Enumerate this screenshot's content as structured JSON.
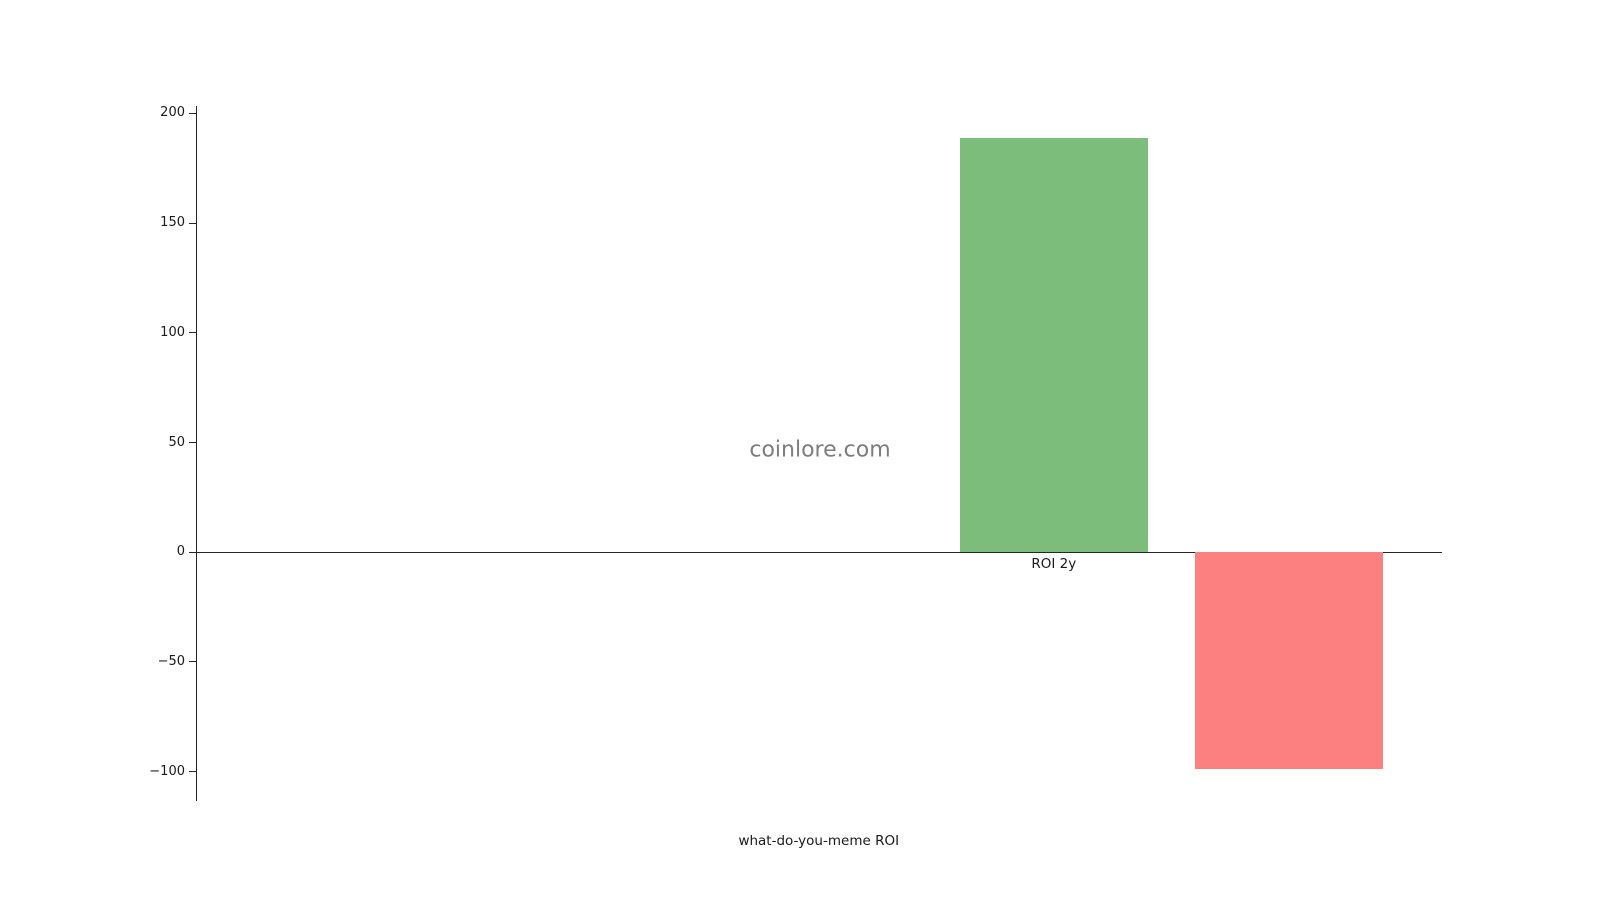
{
  "chart_data": {
    "type": "bar",
    "categories": [
      "ROI 2y",
      ""
    ],
    "values": [
      189,
      -99
    ],
    "bar_colors": [
      "#7dbd7b",
      "#fd8080"
    ],
    "title": "",
    "xlabel": "what-do-you-meme ROI",
    "ylabel": "",
    "ylim": [
      -113.4,
      203.4
    ],
    "xlim": [
      -3.65,
      1.65
    ],
    "yticks": [
      200,
      150,
      100,
      50,
      0,
      -50,
      -100
    ],
    "bar_width": 0.8,
    "grid": false,
    "legend": "none",
    "axis_color": "#262626",
    "watermark": {
      "text": "coinlore.com",
      "color": "#7d7d7d"
    }
  }
}
